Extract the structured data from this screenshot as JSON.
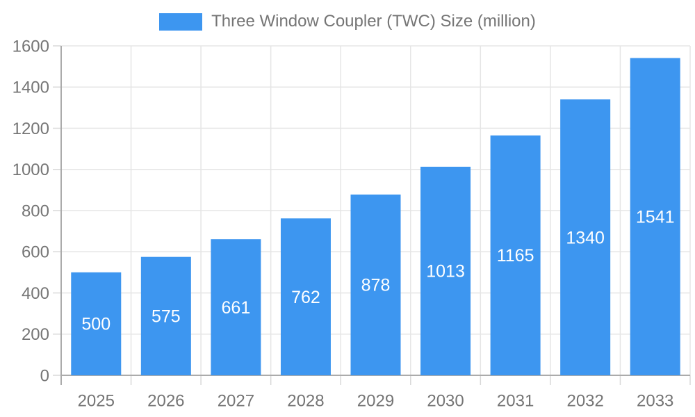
{
  "chart_data": {
    "type": "bar",
    "title": "Three Window Coupler (TWC) Size (million)",
    "categories": [
      "2025",
      "2026",
      "2027",
      "2028",
      "2029",
      "2030",
      "2031",
      "2032",
      "2033"
    ],
    "values": [
      500,
      575,
      661,
      762,
      878,
      1013,
      1165,
      1340,
      1541
    ],
    "series": [
      {
        "name": "Three Window Coupler (TWC) Size (million)",
        "values": [
          500,
          575,
          661,
          762,
          878,
          1013,
          1165,
          1340,
          1541
        ]
      }
    ],
    "xlabel": "",
    "ylabel": "",
    "ylim": [
      0,
      1600
    ],
    "ytick_step": 200,
    "yticks": [
      0,
      200,
      400,
      600,
      800,
      1000,
      1200,
      1400,
      1600
    ],
    "grid": true,
    "legend_position": "top-center",
    "bar_labels_inside": true,
    "colors": {
      "bar": "#3D96F0",
      "value_label": "#FFFFFF",
      "axis_text": "#757575",
      "grid_line": "#E5E5E5",
      "tick_line": "#D8D8D8",
      "axis_line": "#ABABAB",
      "background": "#FFFFFF"
    }
  }
}
